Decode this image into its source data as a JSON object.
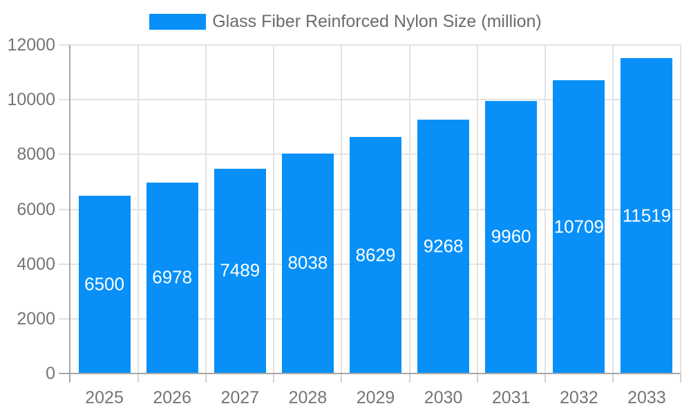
{
  "legend": {
    "swatch_icon": "blue-rect-swatch"
  },
  "chart_data": {
    "type": "bar",
    "title": "Glass Fiber Reinforced Nylon Size (million)",
    "categories": [
      "2025",
      "2026",
      "2027",
      "2028",
      "2029",
      "2030",
      "2031",
      "2032",
      "2033"
    ],
    "series": [
      {
        "name": "Glass Fiber Reinforced Nylon Size (million)",
        "values": [
          6500,
          6978,
          7489,
          8038,
          8629,
          9268,
          9960,
          10709,
          11519
        ]
      }
    ],
    "bar_labels": [
      "6500",
      "6978",
      "7489",
      "8038",
      "8629",
      "9268",
      "9960",
      "10709",
      "11519"
    ],
    "xlabel": "",
    "ylabel": "",
    "ylim": [
      0,
      12000
    ],
    "yticks": [
      0,
      2000,
      4000,
      6000,
      8000,
      10000,
      12000
    ],
    "grid": true,
    "legend_position": "top-center",
    "bar_value_label_position": "center-of-bar",
    "colors": {
      "bar": "#0890f8",
      "bar_label_text": "#ffffff",
      "axis_label_text": "#757575",
      "legend_text": "#6b6b6b",
      "gridline": "#e2e2e2",
      "tick": "#d2d2d2",
      "axis_line": "#a6a6a6",
      "background": "#ffffff"
    }
  }
}
